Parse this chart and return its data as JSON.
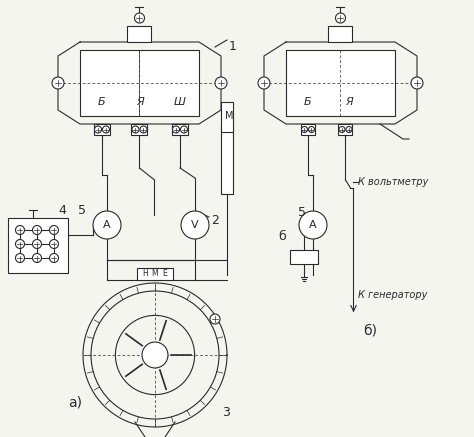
{
  "bg_color": "#f5f5f0",
  "line_color": "#2a2a2a",
  "figsize": [
    4.74,
    4.37
  ],
  "dpi": 100,
  "label_a": "а)",
  "label_b": "б)",
  "text_1": "1",
  "text_2": "2",
  "text_3": "3",
  "text_4": "4",
  "text_5a": "5",
  "text_5b": "5",
  "text_Б_a": "Б",
  "text_Я_a": "Я",
  "text_Ш_a": "Ш",
  "text_М_a": "М",
  "text_Б_b": "Б",
  "text_Я_b": "Я",
  "text_б_b": "б",
  "text_kvolt": "К вольтметру",
  "text_kgen": "К генератору",
  "text_Н": "Н",
  "text_М": "М",
  "text_Е": "Е"
}
